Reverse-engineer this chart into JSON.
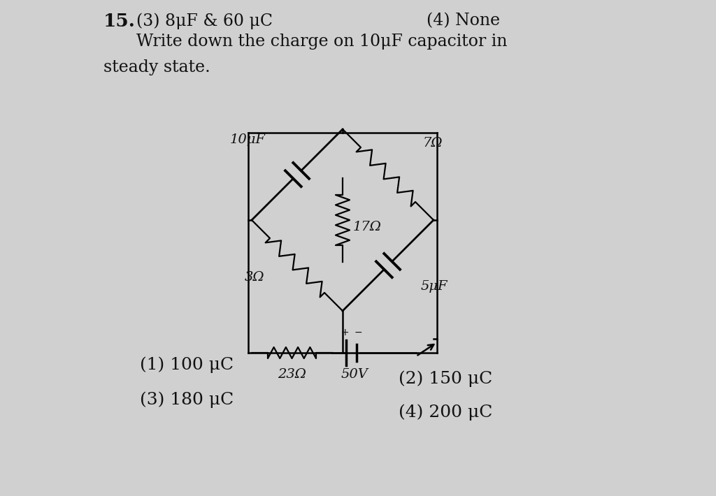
{
  "background_color": "#d0d0d0",
  "text_color": "#111111",
  "question_number": "15.",
  "header_left": "(3) 8μF & 60 μC",
  "header_right": "(4) None",
  "question_line1": "Write down the charge on 10μF capacitor in",
  "question_line2": "steady state.",
  "answer_1": "(1) 100 μC",
  "answer_2": "(2) 150 μC",
  "answer_3": "(3) 180 μC",
  "answer_4": "(4) 200 μC",
  "label_10uF": "10μF",
  "label_7ohm": "7Ω",
  "label_17ohm": "17Ω",
  "label_3ohm": "3Ω",
  "label_5uF": "5μF",
  "label_23ohm": "23Ω",
  "label_50V": "50V"
}
